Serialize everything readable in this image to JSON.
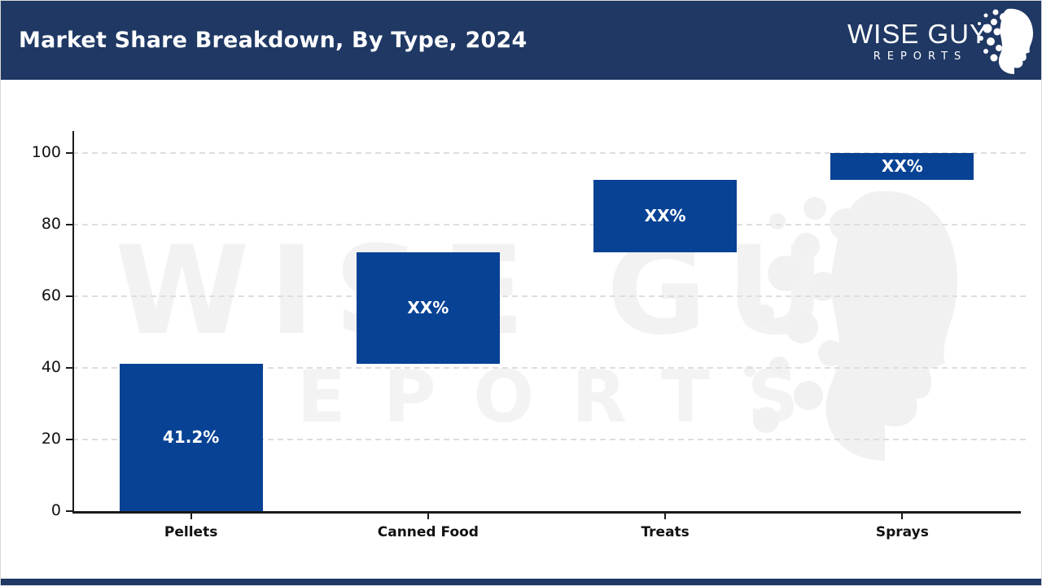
{
  "header": {
    "title": "Market Share Breakdown, By Type, 2024",
    "logo": {
      "line1": "WISE GUY",
      "line2": "REPORTS"
    },
    "navy_color": "#1f3864"
  },
  "watermark": {
    "line1": "WISE GUY",
    "line2": "REPORTS"
  },
  "chart_data": {
    "type": "bar",
    "subtype": "waterfall",
    "title": "Market Share Breakdown, By Type, 2024",
    "xlabel": "",
    "ylabel": "",
    "categories": [
      "Pellets",
      "Canned Food",
      "Treats",
      "Sprays"
    ],
    "segments": [
      {
        "category": "Pellets",
        "start": 0,
        "end": 41.2,
        "label": "41.2%"
      },
      {
        "category": "Canned Food",
        "start": 41.2,
        "end": 72.3,
        "label": "XX%"
      },
      {
        "category": "Treats",
        "start": 72.3,
        "end": 92.6,
        "label": "XX%"
      },
      {
        "category": "Sprays",
        "start": 92.6,
        "end": 100,
        "label": "XX%"
      }
    ],
    "y_ticks": [
      0,
      20,
      40,
      60,
      80,
      100
    ],
    "ylim": [
      0,
      100
    ],
    "grid": "horizontal-dashed",
    "legend": "none",
    "bar_color": "#084294",
    "bar_label_color": "#ffffff",
    "axis_color": "#1a1a1a",
    "gridline_color": "#dedede"
  }
}
